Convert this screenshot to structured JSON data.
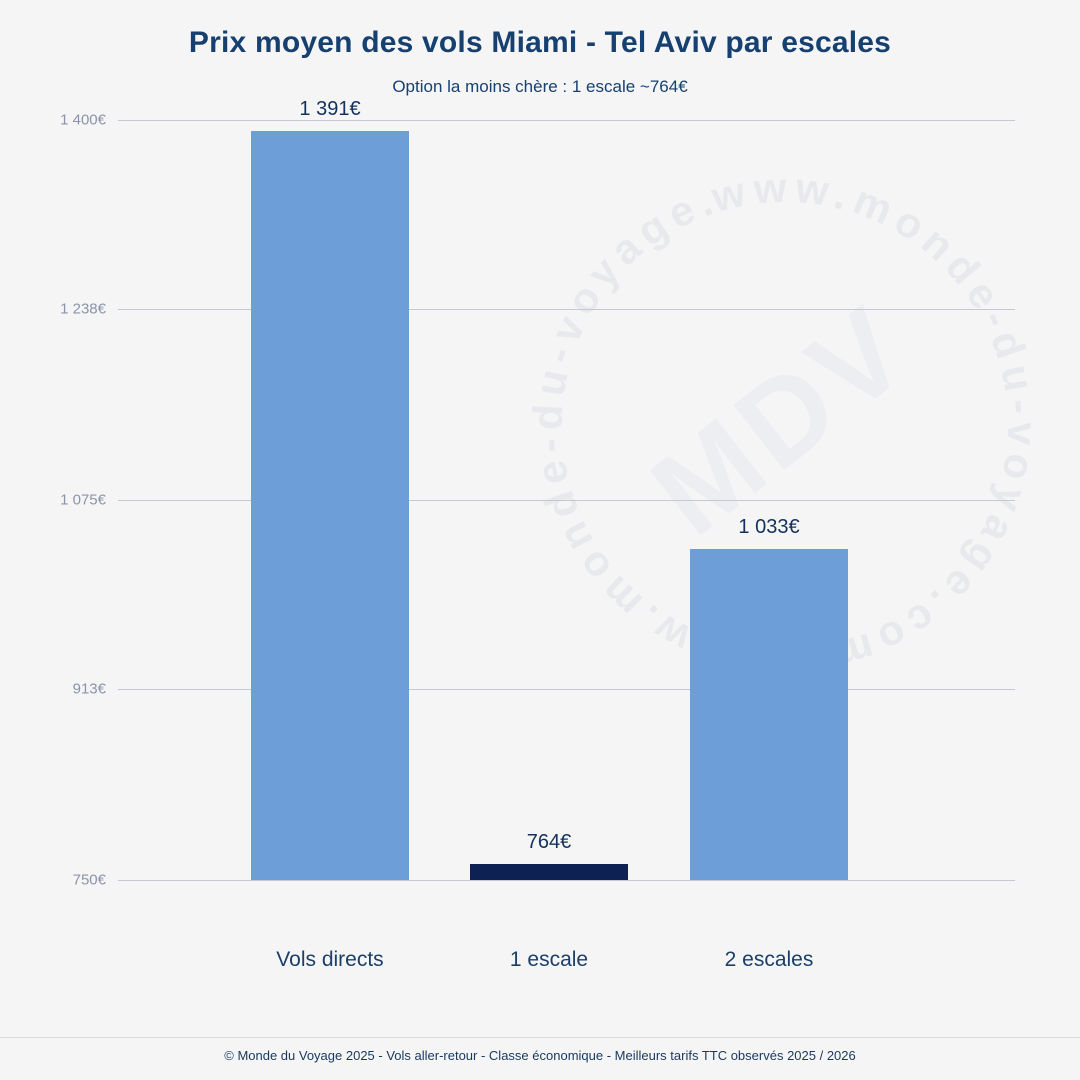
{
  "chart_data": {
    "type": "bar",
    "title": "Prix moyen des vols Miami - Tel Aviv par escales",
    "subtitle": "Option la moins chère : 1 escale ~764€",
    "categories": [
      "Vols directs",
      "1 escale",
      "2 escales"
    ],
    "values": [
      1391,
      764,
      1033
    ],
    "value_labels": [
      "1 391€",
      "764€",
      "1 033€"
    ],
    "ylim": [
      750,
      1400
    ],
    "yticks": [
      1400,
      1238,
      1075,
      913,
      750
    ],
    "ytick_labels": [
      "1 400€",
      "1 238€",
      "1 075€",
      "913€",
      "750€"
    ],
    "bar_colors": [
      "#6d9ed8",
      "#0d2252",
      "#6d9ed8"
    ],
    "highlight_index": 1,
    "grid": true,
    "legend": "none"
  },
  "watermark": {
    "circle_text": "www.monde-du-voyage.com",
    "center_text": "MDV"
  },
  "footer": {
    "text": "© Monde du Voyage 2025 - Vols aller-retour - Classe économique - Meilleurs tarifs TTC observés 2025 / 2026"
  },
  "colors": {
    "background": "#f5f5f6",
    "title": "#15406f",
    "bar_light": "#6d9ed8",
    "bar_dark": "#0d2252",
    "gridline": "#c5c9d6",
    "tick_label": "#8b94aa"
  }
}
